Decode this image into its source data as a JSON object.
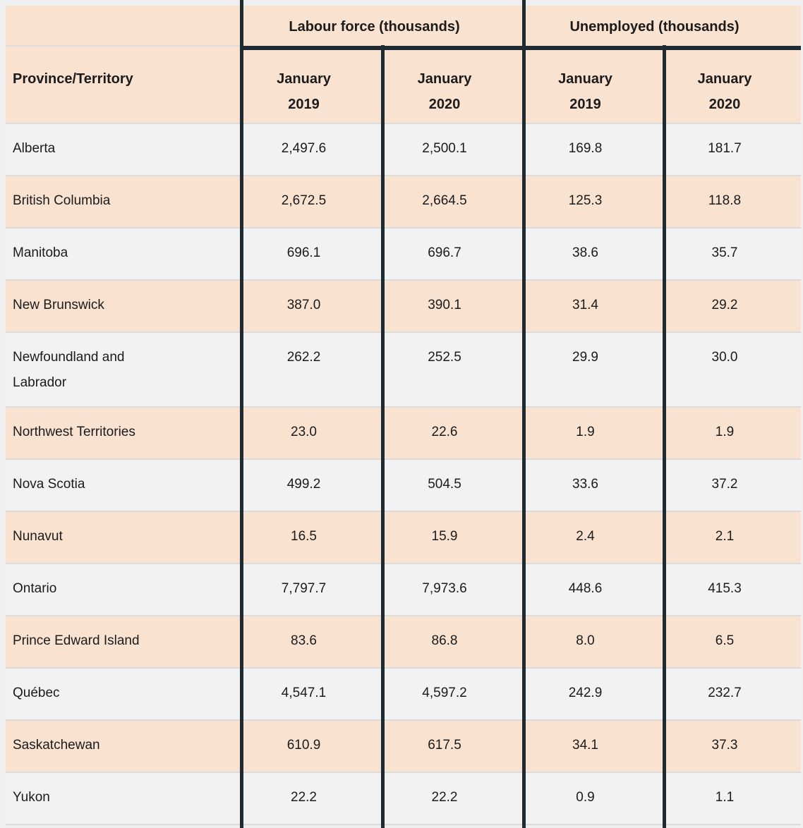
{
  "header": {
    "corner": "Province/Territory",
    "groups": [
      {
        "label": "Labour force (thousands)"
      },
      {
        "label": "Unemployed (thousands)"
      }
    ],
    "subheaders": [
      "January\n2019",
      "January\n2020",
      "January\n2019",
      "January\n2020"
    ]
  },
  "table": {
    "rows": [
      {
        "province": "Alberta",
        "lf_2019": "2,497.6",
        "lf_2020": "2,500.1",
        "ue_2019": "169.8",
        "ue_2020": "181.7"
      },
      {
        "province": "British Columbia",
        "lf_2019": "2,672.5",
        "lf_2020": "2,664.5",
        "ue_2019": "125.3",
        "ue_2020": "118.8"
      },
      {
        "province": "Manitoba",
        "lf_2019": "696.1",
        "lf_2020": "696.7",
        "ue_2019": "38.6",
        "ue_2020": "35.7"
      },
      {
        "province": "New Brunswick",
        "lf_2019": "387.0",
        "lf_2020": "390.1",
        "ue_2019": "31.4",
        "ue_2020": "29.2"
      },
      {
        "province": "Newfoundland and\nLabrador",
        "lf_2019": "262.2",
        "lf_2020": "252.5",
        "ue_2019": "29.9",
        "ue_2020": "30.0"
      },
      {
        "province": "Northwest Territories",
        "lf_2019": "23.0",
        "lf_2020": "22.6",
        "ue_2019": "1.9",
        "ue_2020": "1.9"
      },
      {
        "province": "Nova Scotia",
        "lf_2019": "499.2",
        "lf_2020": "504.5",
        "ue_2019": "33.6",
        "ue_2020": "37.2"
      },
      {
        "province": "Nunavut",
        "lf_2019": "16.5",
        "lf_2020": "15.9",
        "ue_2019": "2.4",
        "ue_2020": "2.1"
      },
      {
        "province": "Ontario",
        "lf_2019": "7,797.7",
        "lf_2020": "7,973.6",
        "ue_2019": "448.6",
        "ue_2020": "415.3"
      },
      {
        "province": "Prince Edward Island",
        "lf_2019": "83.6",
        "lf_2020": "86.8",
        "ue_2019": "8.0",
        "ue_2020": "6.5"
      },
      {
        "province": "Québec",
        "lf_2019": "4,547.1",
        "lf_2020": "4,597.2",
        "ue_2019": "242.9",
        "ue_2020": "232.7"
      },
      {
        "province": "Saskatchewan",
        "lf_2019": "610.9",
        "lf_2020": "617.5",
        "ue_2019": "34.1",
        "ue_2020": "37.3"
      },
      {
        "province": "Yukon",
        "lf_2019": "22.2",
        "lf_2020": "22.2",
        "ue_2019": "0.9",
        "ue_2020": "1.1"
      }
    ]
  },
  "chart_data": {
    "type": "table",
    "columns": [
      "Province/Territory",
      "Labour force (thousands) - January 2019",
      "Labour force (thousands) - January 2020",
      "Unemployed (thousands) - January 2019",
      "Unemployed (thousands) - January 2020"
    ],
    "rows": [
      [
        "Alberta",
        2497.6,
        2500.1,
        169.8,
        181.7
      ],
      [
        "British Columbia",
        2672.5,
        2664.5,
        125.3,
        118.8
      ],
      [
        "Manitoba",
        696.1,
        696.7,
        38.6,
        35.7
      ],
      [
        "New Brunswick",
        387.0,
        390.1,
        31.4,
        29.2
      ],
      [
        "Newfoundland and Labrador",
        262.2,
        252.5,
        29.9,
        30.0
      ],
      [
        "Northwest Territories",
        23.0,
        22.6,
        1.9,
        1.9
      ],
      [
        "Nova Scotia",
        499.2,
        504.5,
        33.6,
        37.2
      ],
      [
        "Nunavut",
        16.5,
        15.9,
        2.4,
        2.1
      ],
      [
        "Ontario",
        7797.7,
        7973.6,
        448.6,
        415.3
      ],
      [
        "Prince Edward Island",
        83.6,
        86.8,
        8.0,
        6.5
      ],
      [
        "Québec",
        4547.1,
        4597.2,
        242.9,
        232.7
      ],
      [
        "Saskatchewan",
        610.9,
        617.5,
        34.1,
        37.3
      ],
      [
        "Yukon",
        22.2,
        22.2,
        0.9,
        1.1
      ]
    ]
  },
  "colors": {
    "page_bg": "#efeff0",
    "header_bg": "#fae2d0",
    "stripe_bg": "#f2f2f2",
    "row_divider": "#dcdcdc",
    "dark_border": "#1e2b33",
    "text_color": "#1b1b1b"
  }
}
